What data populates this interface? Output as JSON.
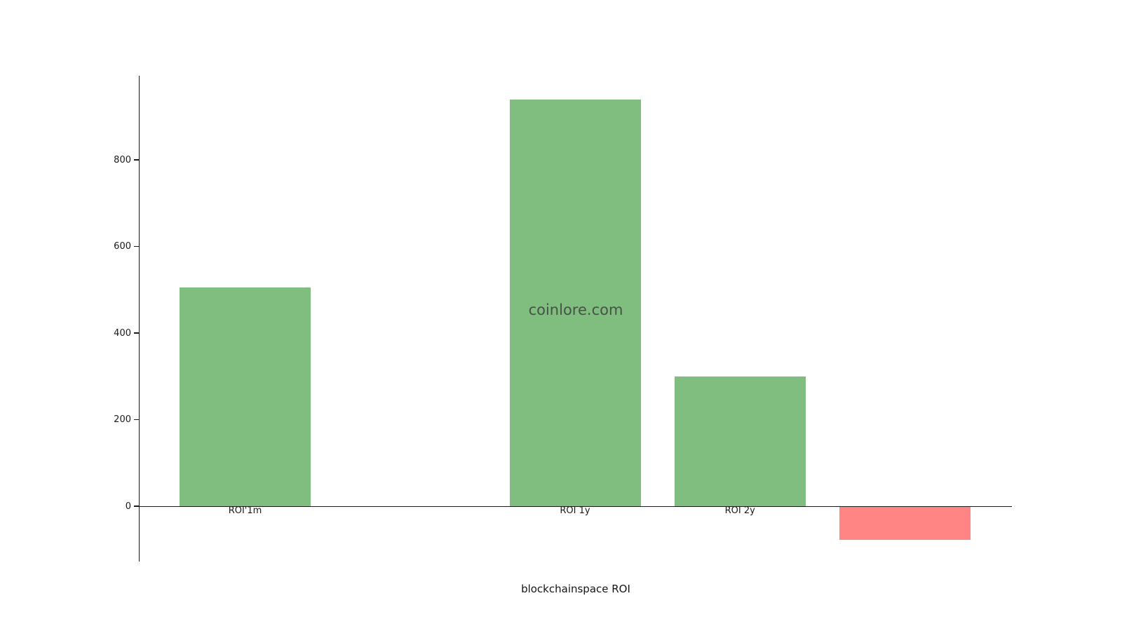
{
  "page": {
    "background_color": "#ffffff"
  },
  "chart_data": {
    "type": "bar",
    "title": "blockchainspace ROI",
    "watermark": "coinlore.com",
    "categories": [
      "ROI'1m",
      "ROI 1y",
      "ROI 2y",
      ""
    ],
    "values": [
      505,
      940,
      300,
      -77
    ],
    "x_positions": [
      0,
      2,
      3,
      4
    ],
    "yticks": [
      0,
      200,
      400,
      600,
      800
    ],
    "ylim": [
      -128,
      994
    ],
    "xlabel": "",
    "ylabel": "",
    "grid": false,
    "legend": null,
    "colors": {
      "positive_bar": "#7fbe7f",
      "negative_bar": "#ff8484",
      "axis": "#1a1a1a",
      "tick_text": "#1a1a1a",
      "watermark_text": "#3e483e",
      "title_text": "#151515"
    }
  }
}
